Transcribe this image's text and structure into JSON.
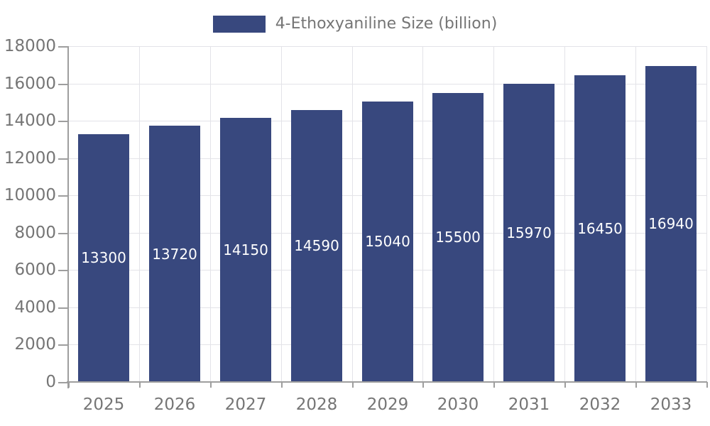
{
  "legend": {
    "swatch_color": "#38487E"
  },
  "chart_data": {
    "type": "bar",
    "title": "",
    "categories": [
      "2025",
      "2026",
      "2027",
      "2028",
      "2029",
      "2030",
      "2031",
      "2032",
      "2033"
    ],
    "series": [
      {
        "name": "4-Ethoxyaniline Size (billion)",
        "values": [
          13300,
          13720,
          14150,
          14590,
          15040,
          15500,
          15970,
          16450,
          16940
        ]
      }
    ],
    "bar_value_labels": [
      "13300",
      "13720",
      "14150",
      "14590",
      "15040",
      "15500",
      "15970",
      "16450",
      "16940"
    ],
    "xlabel": "",
    "ylabel": "",
    "ylim": [
      0,
      18000
    ],
    "yticks": [
      0,
      2000,
      4000,
      6000,
      8000,
      10000,
      12000,
      14000,
      16000,
      18000
    ],
    "grid": true,
    "legend_position": "top-center",
    "value_label_position": "inside-center"
  },
  "colors": {
    "bar": "#38487E",
    "axis_text": "#757575",
    "bar_label_text": "#FFFFFF",
    "grid_line": "#E3E3E8",
    "axis_line": "#9E9E9E",
    "background": "#FFFFFF"
  }
}
